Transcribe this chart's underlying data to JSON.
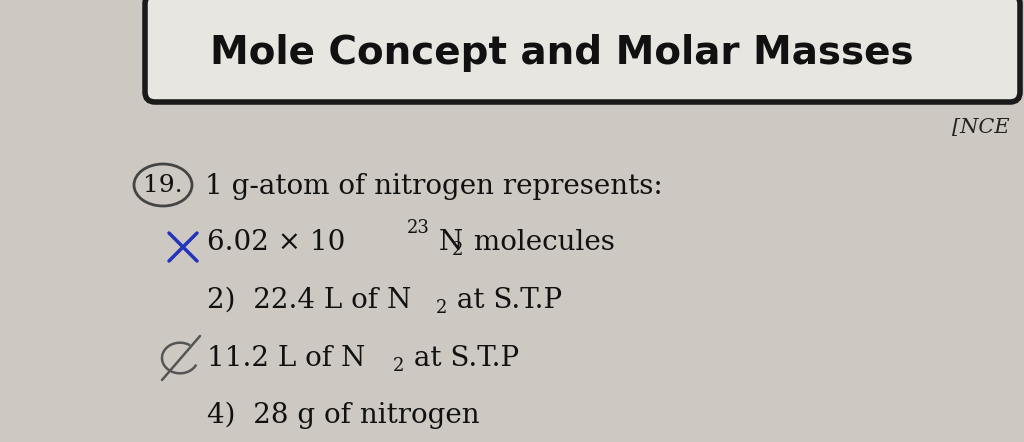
{
  "bg_color": "#cdc9c2",
  "title_box_color": "#e8e6e0",
  "title_border_color": "#1a1a1a",
  "title_text": "Mole Concept and Molar Masses",
  "title_text_color": "#111111",
  "nce_text": "[NCE",
  "nce_color": "#222222",
  "question_number": "19.",
  "question_text": "1 g-atom of nitrogen represents:",
  "option1_main": "6.02 × 10",
  "option1_sup": "23",
  "option1_N": " N",
  "option1_sub": "2",
  "option1_end": " molecules",
  "option2": "2)  22.4 L of N",
  "option2_sub": "2",
  "option2_end": " at S.T.P",
  "option3": "11.2 L of N",
  "option3_sub": "2",
  "option3_end": " at S.T.P",
  "option4": "4)  28 g of nitrogen",
  "font_size_title": 28,
  "font_size_nce": 15,
  "font_size_q": 20,
  "font_size_opt": 20,
  "font_size_small": 13,
  "text_color": "#111111",
  "cross_color": "#2233bb",
  "circle_color": "#444444",
  "slash_color": "#555555"
}
